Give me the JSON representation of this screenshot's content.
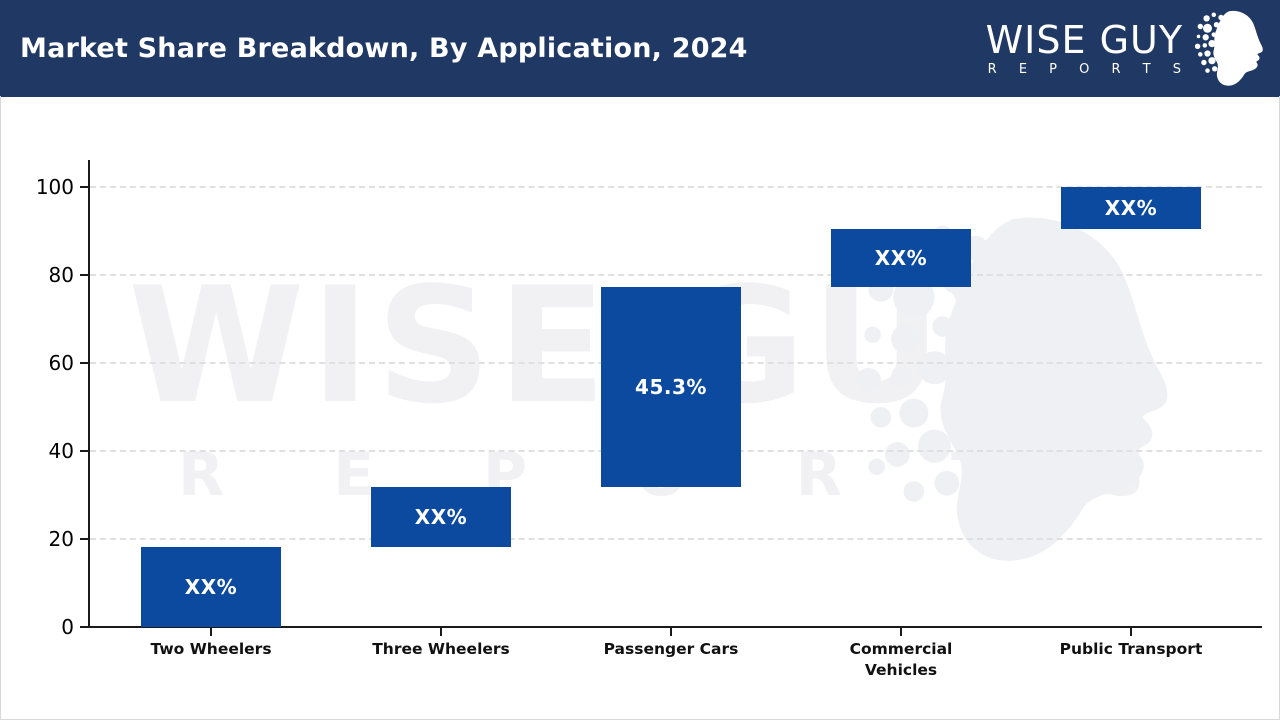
{
  "header": {
    "title": "Market Share Breakdown, By Application, 2024",
    "bg_color": "#1f3864",
    "logo": {
      "line1": "WISE GUY",
      "line2": "R E P O R T S"
    }
  },
  "watermark": {
    "line1": "WISE GUY",
    "line2": "R E P O R T S"
  },
  "chart_data": {
    "type": "bar",
    "variant": "waterfall",
    "title": "Market Share Breakdown, By Application, 2024",
    "categories": [
      "Two Wheelers",
      "Three Wheelers",
      "Passenger Cars",
      "Commercial\nVehicles",
      "Public Transport"
    ],
    "bars": [
      {
        "start": 0,
        "end": 18.2,
        "label": "XX%"
      },
      {
        "start": 18.2,
        "end": 31.9,
        "label": "XX%"
      },
      {
        "start": 31.9,
        "end": 77.2,
        "label": "45.3%",
        "value": 45.3
      },
      {
        "start": 77.2,
        "end": 90.5,
        "label": "XX%"
      },
      {
        "start": 90.5,
        "end": 100,
        "label": "XX%"
      }
    ],
    "ylim": [
      0,
      100
    ],
    "yticks": [
      0,
      20,
      40,
      60,
      80,
      100
    ],
    "xlabel": "",
    "ylabel": "",
    "grid": "horizontal-dashed",
    "legend": "none",
    "bar_color": "#0b4a9f",
    "bar_label_color": "#ffffff",
    "axis_color": "#1a1a1a"
  }
}
